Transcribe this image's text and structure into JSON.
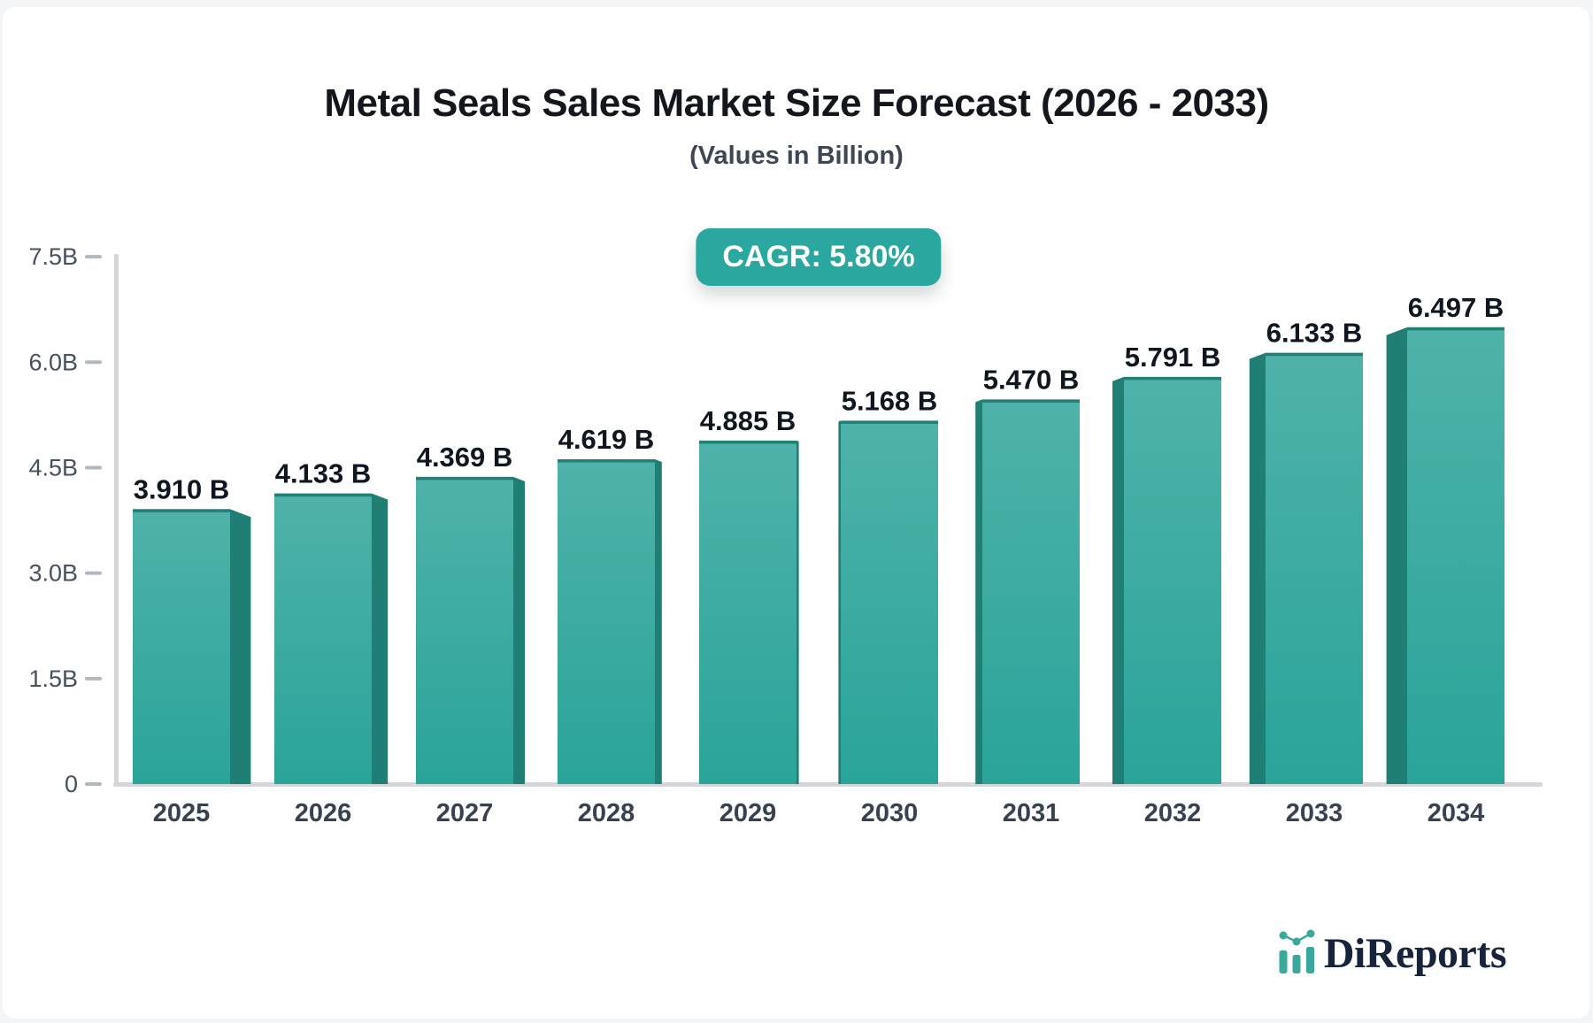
{
  "page": {
    "background": "#f3f5f7",
    "card_background": "#ffffff"
  },
  "header": {
    "title": "Metal Seals Sales Market Size Forecast (2026 - 2033)",
    "subtitle": "(Values in Billion)"
  },
  "badge": {
    "label": "CAGR: 5.80%",
    "background": "#2aa79f",
    "text_color": "#ffffff"
  },
  "chart_data": {
    "type": "bar",
    "title": "Metal Seals Sales Market Size Forecast (2026 - 2033)",
    "subtitle": "(Values in Billion)",
    "xlabel": "",
    "ylabel": "",
    "categories": [
      "2025",
      "2026",
      "2027",
      "2028",
      "2029",
      "2030",
      "2031",
      "2032",
      "2033",
      "2034"
    ],
    "values": [
      3.91,
      4.133,
      4.369,
      4.619,
      4.885,
      5.168,
      5.47,
      5.791,
      6.133,
      6.497
    ],
    "value_labels": [
      "3.910 B",
      "4.133 B",
      "4.369 B",
      "4.619 B",
      "4.885 B",
      "5.168 B",
      "5.470 B",
      "5.791 B",
      "6.133 B",
      "6.497 B"
    ],
    "unit": "B",
    "ylim": [
      0,
      7.5
    ],
    "yticks": [
      {
        "value": 0,
        "label": "0"
      },
      {
        "value": 1.5,
        "label": "1.5B"
      },
      {
        "value": 3.0,
        "label": "3.0B"
      },
      {
        "value": 4.5,
        "label": "4.5B"
      },
      {
        "value": 6.0,
        "label": "6.0B"
      },
      {
        "value": 7.5,
        "label": "7.5B"
      }
    ],
    "grid": false,
    "legend": null,
    "colors": {
      "bar_face_top": "#4fb2aa",
      "bar_face_bottom": "#2aa499",
      "bar_side": "#1f7f75",
      "bar_top_edge": "#1d7c71",
      "axis_line": "#d4d6da",
      "tick_dash": "#b3b8bf",
      "tick_label": "#47505e",
      "x_label": "#39414f",
      "value_label": "#10161f"
    }
  },
  "logo": {
    "text": "DiReports",
    "text_color": "#16233b",
    "icon_color": "#3aa89c",
    "icon": "bar-chart-logo-icon"
  }
}
